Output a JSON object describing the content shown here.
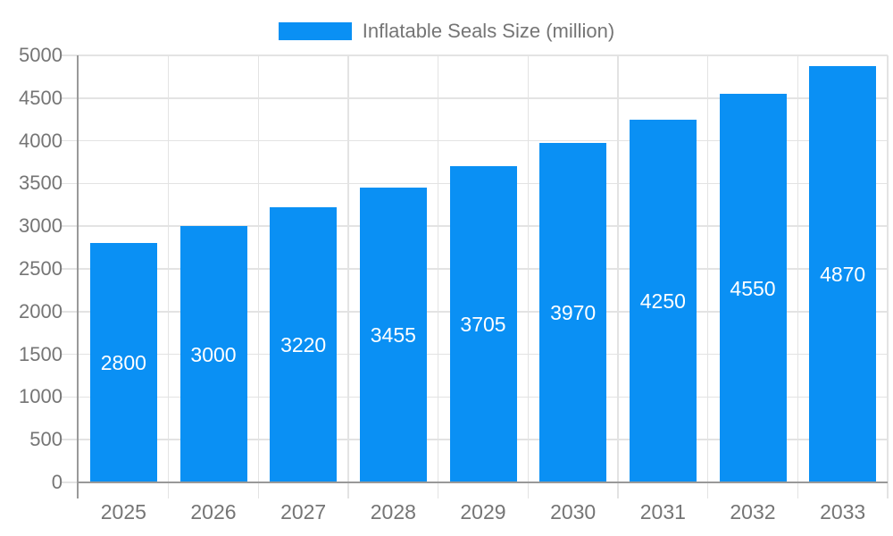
{
  "legend": {
    "label": "Inflatable Seals Size (million)"
  },
  "chart_data": {
    "type": "bar",
    "title": "Inflatable Seals Size (million)",
    "categories": [
      "2025",
      "2026",
      "2027",
      "2028",
      "2029",
      "2030",
      "2031",
      "2032",
      "2033"
    ],
    "series": [
      {
        "name": "Inflatable Seals Size (million)",
        "values": [
          2800,
          3000,
          3220,
          3455,
          3705,
          3970,
          4250,
          4550,
          4870
        ]
      }
    ],
    "values": [
      2800,
      3000,
      3220,
      3455,
      3705,
      3970,
      4250,
      4550,
      4870
    ],
    "xlabel": "",
    "ylabel": "",
    "ylim": [
      0,
      5000
    ],
    "y_ticks": [
      0,
      500,
      1000,
      1500,
      2000,
      2500,
      3000,
      3500,
      4000,
      4500,
      5000
    ],
    "grid": true,
    "legend_position": "top-center",
    "value_label_position": "inside-center",
    "colors": {
      "bar": "#0A90F4",
      "bar_label": "#FFFFFF",
      "axis_line": "#999999",
      "grid_line": "#E3E3E3",
      "tick_text": "#757575",
      "background": "#FFFFFF"
    }
  }
}
